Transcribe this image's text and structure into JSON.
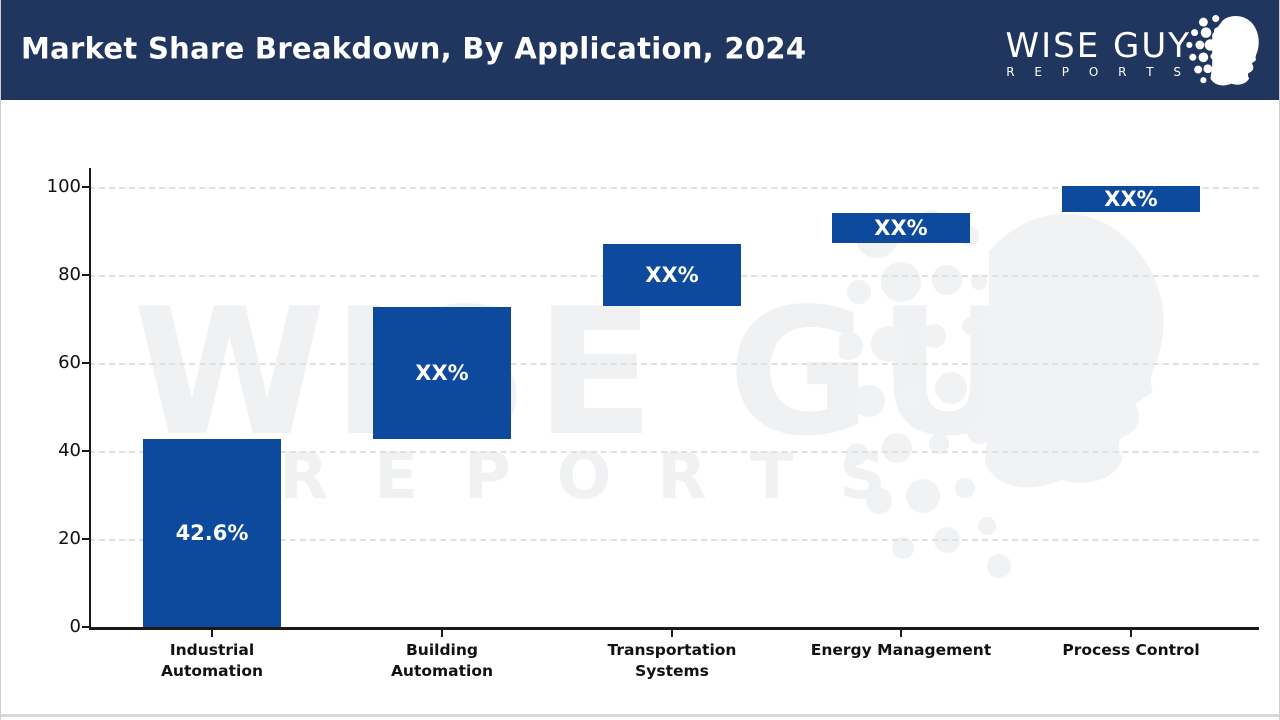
{
  "header": {
    "title": "Market Share Breakdown, By Application, 2024",
    "bg_color": "#21365f",
    "logo": {
      "line1": "WISE GUY",
      "line2": "R E P O R T S"
    }
  },
  "watermark": {
    "line1": "WISE GUY",
    "line2": "REPORTS"
  },
  "chart_data": {
    "type": "bar",
    "subtype": "waterfall",
    "title": "Market Share Breakdown, By Application, 2024",
    "categories": [
      "Industrial Automation",
      "Building Automation",
      "Transportation Systems",
      "Energy Management",
      "Process Control"
    ],
    "category_lines": [
      [
        "Industrial",
        "Automation"
      ],
      [
        "Building",
        "Automation"
      ],
      [
        "Transportation",
        "Systems"
      ],
      [
        "Energy Management"
      ],
      [
        "Process Control"
      ]
    ],
    "segments": [
      {
        "category": "Industrial Automation",
        "start": 0,
        "end": 42.6,
        "label": "42.6%"
      },
      {
        "category": "Building Automation",
        "start": 42.6,
        "end": 72.7,
        "label": "XX%"
      },
      {
        "category": "Transportation Systems",
        "start": 72.9,
        "end": 87.0,
        "label": "XX%"
      },
      {
        "category": "Energy Management",
        "start": 87.3,
        "end": 94.1,
        "label": "XX%"
      },
      {
        "category": "Process Control",
        "start": 94.3,
        "end": 100.1,
        "label": "XX%"
      }
    ],
    "yticks": [
      0,
      20,
      40,
      60,
      80,
      100
    ],
    "ylim": [
      0,
      104
    ],
    "bar_color": "#0d4a9e",
    "bar_label_color": "#ffffff",
    "grid": "horizontal dashed",
    "legend": "none",
    "xlabel": "",
    "ylabel": ""
  }
}
